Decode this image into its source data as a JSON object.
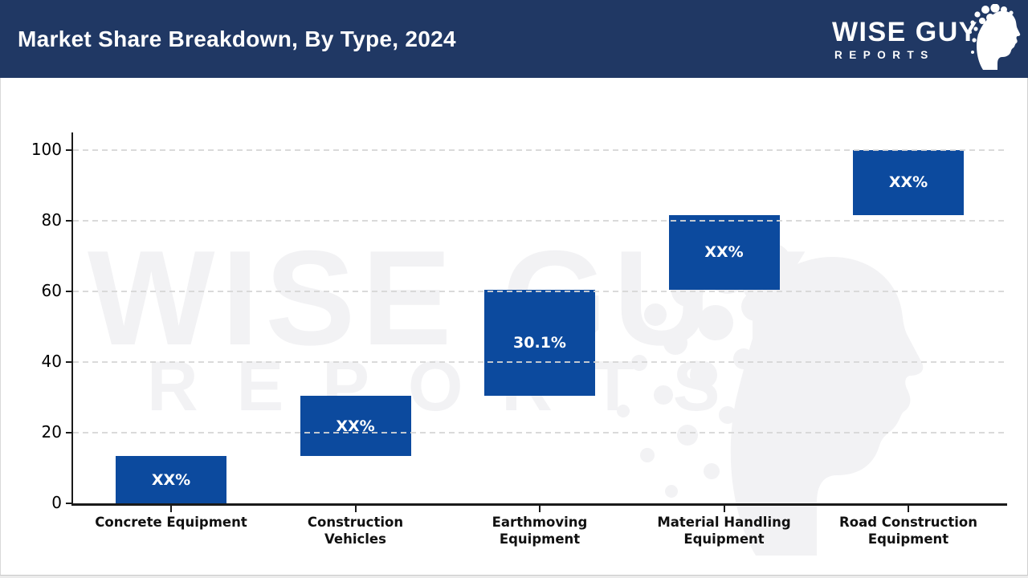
{
  "header": {
    "title": "Market Share Breakdown, By Type, 2024",
    "bg_color": "#203864",
    "logo": {
      "line1": "WISE GUY",
      "line2": "REPORTS"
    }
  },
  "watermark": {
    "line1": "WISE GUY",
    "line2": "REPORTS"
  },
  "chart_data": {
    "type": "bar",
    "variant": "floating-waterfall",
    "title": "Market Share Breakdown, By Type, 2024",
    "categories": [
      "Concrete Equipment",
      "Construction Vehicles",
      "Earthmoving Equipment",
      "Material Handling Equipment",
      "Road Construction Equipment"
    ],
    "category_tick_lines": [
      [
        "Concrete Equipment"
      ],
      [
        "Construction",
        "Vehicles"
      ],
      [
        "Earthmoving",
        "Equipment"
      ],
      [
        "Material Handling",
        "Equipment"
      ],
      [
        "Road Construction",
        "Equipment"
      ]
    ],
    "segments": [
      {
        "category": "Concrete Equipment",
        "start": 0,
        "end": 13.4,
        "label": "XX%"
      },
      {
        "category": "Construction Vehicles",
        "start": 13.4,
        "end": 30.4,
        "label": "XX%"
      },
      {
        "category": "Earthmoving Equipment",
        "start": 30.4,
        "end": 60.5,
        "label": "30.1%"
      },
      {
        "category": "Material Handling Equipment",
        "start": 60.5,
        "end": 81.6,
        "label": "XX%"
      },
      {
        "category": "Road Construction Equipment",
        "start": 81.6,
        "end": 100,
        "label": "XX%"
      }
    ],
    "ylim": [
      0,
      100
    ],
    "yticks": [
      "0",
      "20",
      "40",
      "60",
      "80",
      "100"
    ],
    "grid": "horizontal-dashed",
    "legend": "none",
    "bar_color": "#0c4a9e",
    "axis_color": "#1a1a1a"
  }
}
